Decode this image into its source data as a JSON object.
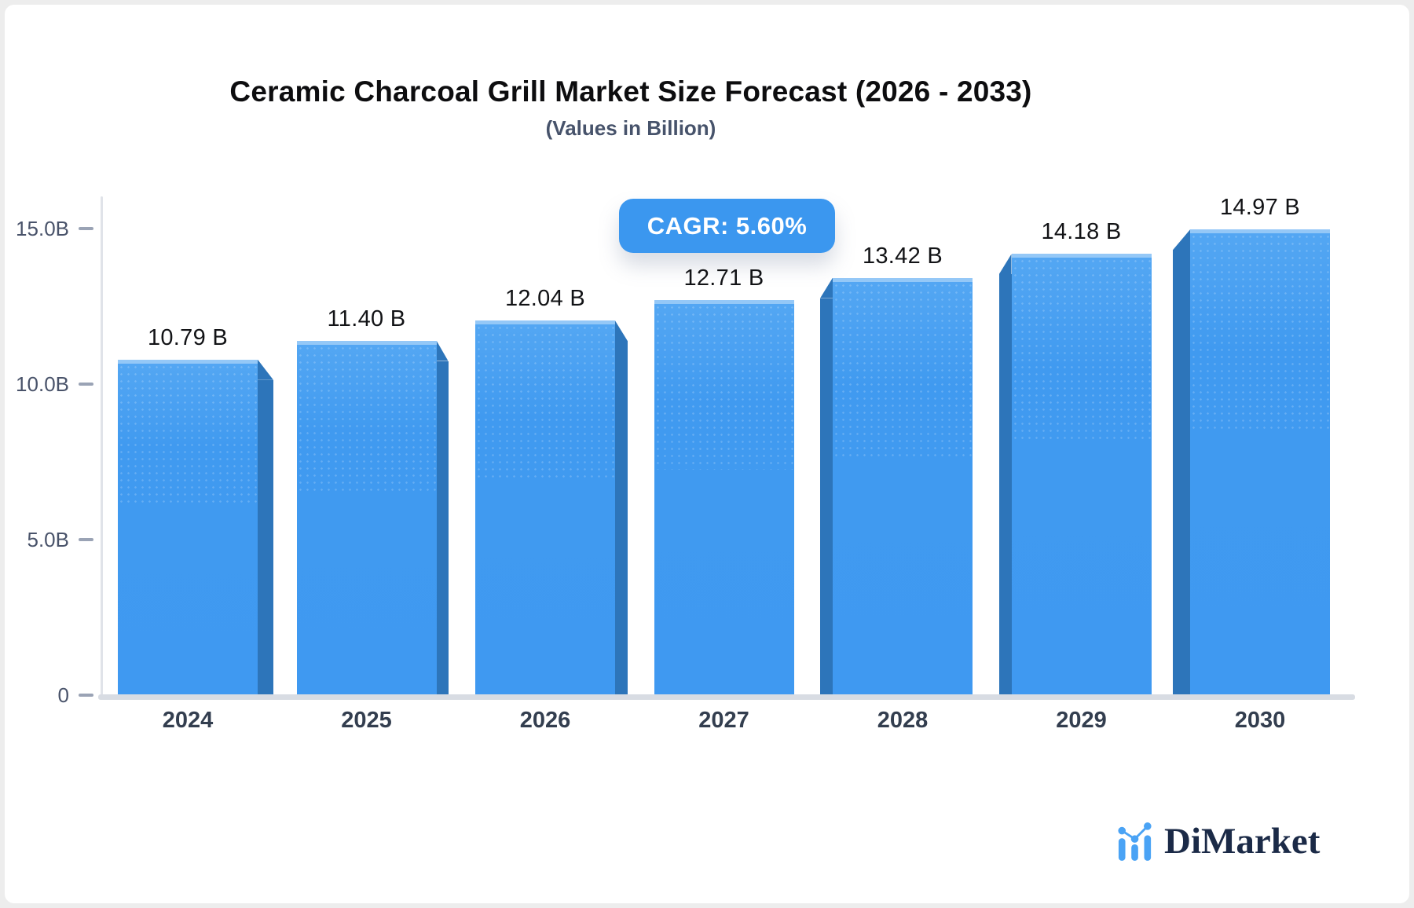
{
  "page": {
    "background": "#ededed",
    "card_background": "#ffffff"
  },
  "header": {
    "title": "Ceramic Charcoal Grill Market Size Forecast (2026 - 2033)",
    "subtitle": "(Values in Billion)"
  },
  "badge": {
    "label": "CAGR: 5.60%",
    "background": "#3b97ef",
    "text_color": "#ffffff"
  },
  "logo": {
    "text": "DiMarket",
    "icon": "bar-chart-logo-icon",
    "icon_color": "#4aa3f5",
    "text_color": "#1b2a47"
  },
  "chart_data": {
    "type": "bar",
    "title": "Ceramic Charcoal Grill Market Size Forecast (2026 - 2033)",
    "subtitle": "(Values in Billion)",
    "categories": [
      "2024",
      "2025",
      "2026",
      "2027",
      "2028",
      "2029",
      "2030"
    ],
    "values": [
      10.79,
      11.4,
      12.04,
      12.71,
      13.42,
      14.18,
      14.97
    ],
    "value_labels": [
      "10.79 B",
      "11.40 B",
      "12.04 B",
      "12.71 B",
      "13.42 B",
      "14.18 B",
      "14.97 B"
    ],
    "xlabel": "",
    "ylabel": "",
    "ylim": [
      0,
      15.8
    ],
    "yticks": [
      {
        "value": 0,
        "label": "0"
      },
      {
        "value": 5,
        "label": "5.0B"
      },
      {
        "value": 10,
        "label": "10.0B"
      },
      {
        "value": 15,
        "label": "15.0B"
      }
    ],
    "grid": false,
    "legend": false,
    "annotations": [
      "CAGR: 5.60%"
    ],
    "bar_color": "#3f99f0",
    "bar_side_color": "#2d75ba",
    "bar_highlight_color": "#7fc0f7",
    "style": "3d-perspective-bars"
  }
}
